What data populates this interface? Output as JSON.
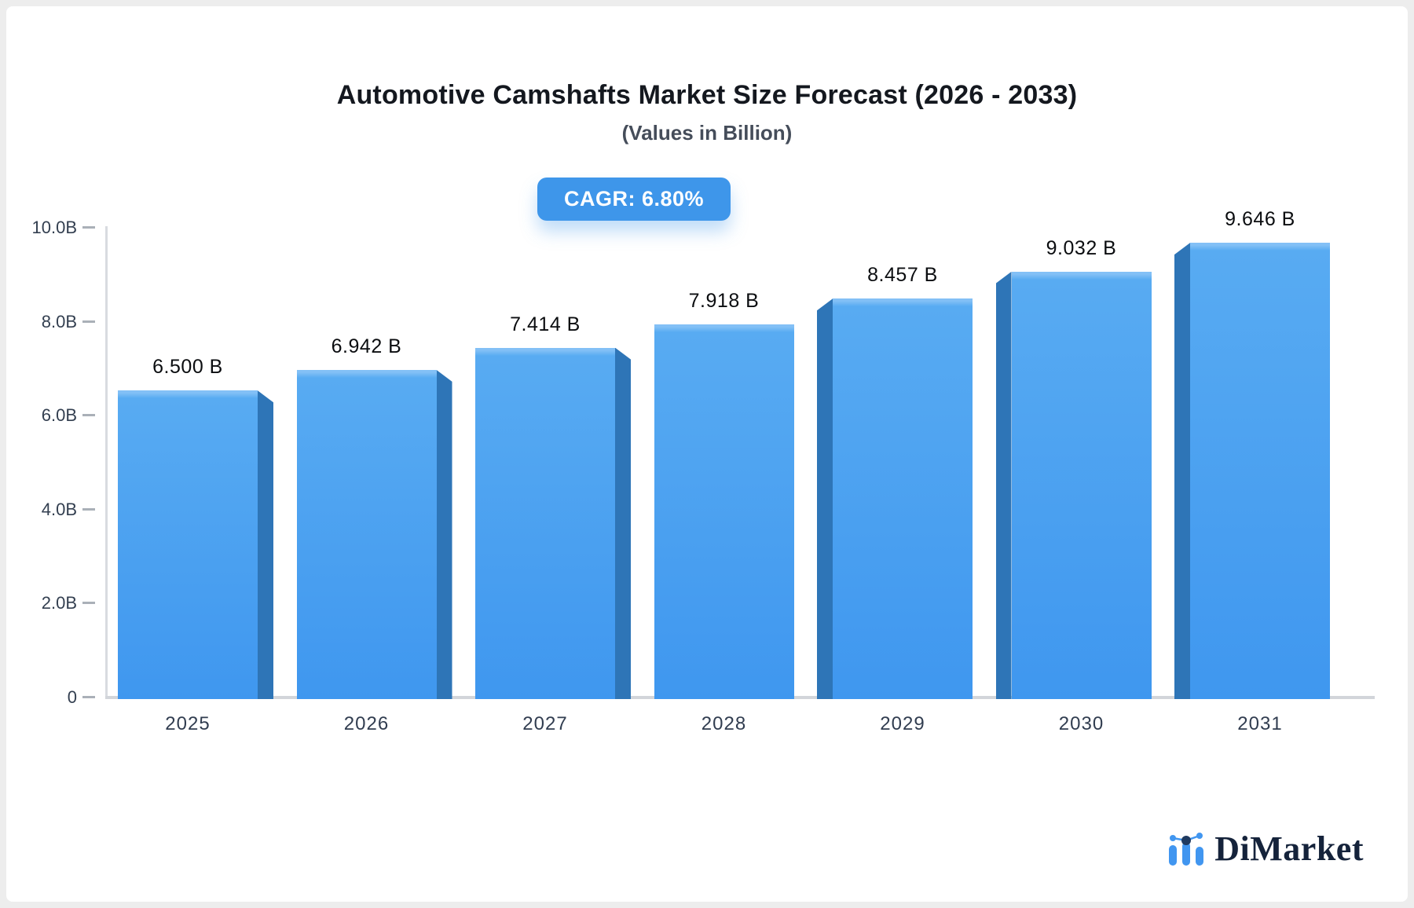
{
  "title": "Automotive Camshafts Market Size Forecast (2026 - 2033)",
  "subtitle": "(Values in Billion)",
  "badge": {
    "label": "CAGR: 6.80%"
  },
  "logo": {
    "name": "DiMarket"
  },
  "colors": {
    "accent": "#3e96ea",
    "bar_top_highlight": "#83c0f6",
    "bar_gradient_top": "#58abf2",
    "bar_gradient_bottom": "#3f97ef",
    "bar_side": "#2e75b7",
    "axis_line": "#d2d5da",
    "tick_text": "#333f50",
    "title_text": "#14181f"
  },
  "chart_data": {
    "type": "bar",
    "title": "Automotive Camshafts Market Size Forecast (2026 - 2033)",
    "subtitle": "(Values in Billion)",
    "annotation": "CAGR: 6.80%",
    "categories": [
      "2025",
      "2026",
      "2027",
      "2028",
      "2029",
      "2030",
      "2031"
    ],
    "values": [
      6.5,
      6.942,
      7.414,
      7.918,
      8.457,
      9.032,
      9.646
    ],
    "value_labels": [
      "6.500 B",
      "6.942 B",
      "7.414 B",
      "7.918 B",
      "8.457 B",
      "9.032 B",
      "9.646 B"
    ],
    "unit": "Billion",
    "xlabel": "",
    "ylabel": "",
    "ylim": [
      0,
      10
    ],
    "yticks": [
      {
        "value": 0,
        "label": "0"
      },
      {
        "value": 2,
        "label": "2.0B"
      },
      {
        "value": 4,
        "label": "4.0B"
      },
      {
        "value": 6,
        "label": "6.0B"
      },
      {
        "value": 8,
        "label": "8.0B"
      },
      {
        "value": 10,
        "label": "10.0B"
      }
    ],
    "grid": false,
    "legend_position": "none",
    "bar_style": "3d-beveled"
  }
}
